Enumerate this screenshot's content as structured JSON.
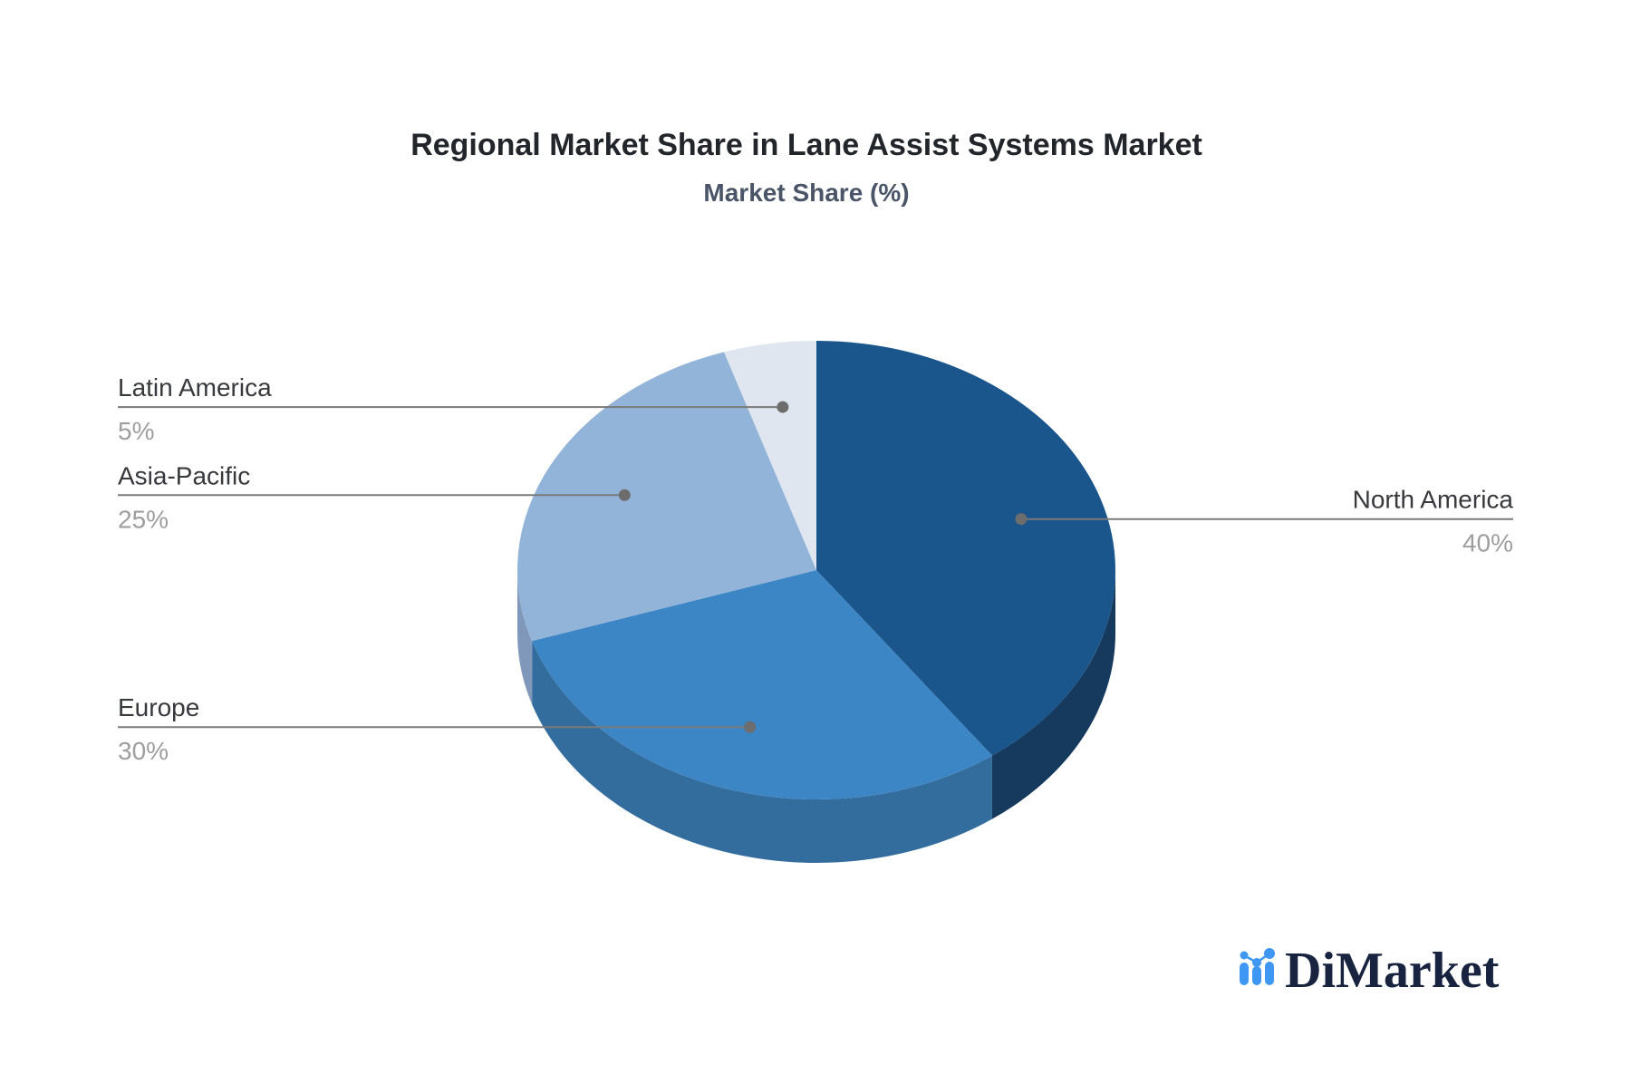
{
  "title": "Regional Market Share in Lane Assist Systems Market",
  "subtitle": "Market Share (%)",
  "chart_data": {
    "type": "pie",
    "title": "Regional Market Share in Lane Assist Systems Market",
    "subtitle": "Market Share (%)",
    "unit": "%",
    "style": "3d-pie",
    "start_angle_deg": 0,
    "direction": "clockwise",
    "legend_position": "none",
    "labels": "leader-lines",
    "slices": [
      {
        "label": "North America",
        "value": 40,
        "display": "40%",
        "color": "#1a568c",
        "side_color": "#163a5e",
        "label_side": "right"
      },
      {
        "label": "Europe",
        "value": 30,
        "display": "30%",
        "color": "#3c86c6",
        "side_color": "#336d9e",
        "label_side": "left"
      },
      {
        "label": "Asia-Pacific",
        "value": 25,
        "display": "25%",
        "color": "#93b4d9",
        "side_color": "#8099ba",
        "label_side": "left"
      },
      {
        "label": "Latin America",
        "value": 5,
        "display": "5%",
        "color": "#dfe6ef",
        "side_color": "#c7d1e0",
        "label_side": "left"
      }
    ]
  },
  "branding": {
    "logo_text": "DiMarket",
    "logo_icon": "bar-chart-trend-icon",
    "logo_icon_color": "#3e97f2",
    "logo_text_color": "#17233f"
  },
  "colors": {
    "background": "#ffffff",
    "title": "#222529",
    "subtitle": "#4a5568",
    "slice_label": "#37393c",
    "slice_value": "#9e9e9e",
    "leader_line": "#7a7a7a",
    "leader_dot": "#6d6d6d"
  }
}
